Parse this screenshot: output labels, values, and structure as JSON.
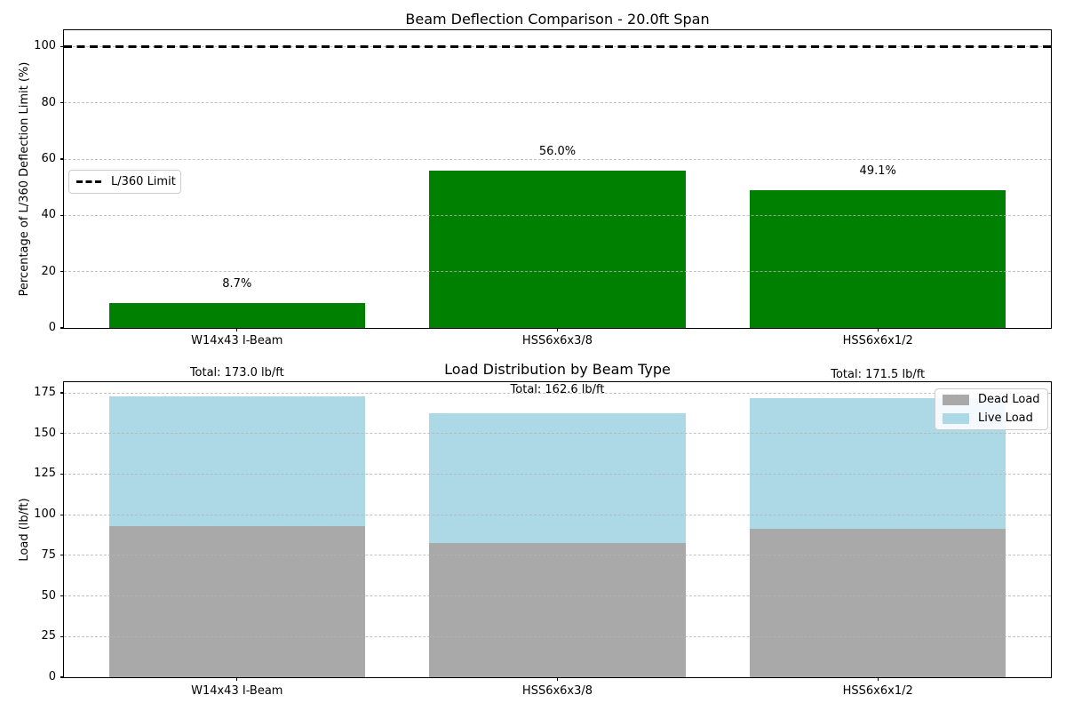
{
  "figure": {
    "background": "#ffffff"
  },
  "chart_data": [
    {
      "type": "bar",
      "title": "Beam Deflection Comparison - 20.0ft Span",
      "ylabel": "Percentage of L/360 Deflection Limit (%)",
      "xlabel": "",
      "categories": [
        "W14x43 I-Beam",
        "HSS6x6x3/8",
        "HSS6x6x1/2"
      ],
      "values": [
        8.7,
        56.0,
        49.1
      ],
      "bar_labels": [
        "8.7%",
        "56.0%",
        "49.1%"
      ],
      "bar_color": "#008000",
      "yticks": [
        0,
        20,
        40,
        60,
        80,
        100
      ],
      "ylim": [
        0,
        105.8
      ],
      "grid": "dashed-horizontal",
      "reference_line": {
        "value": 100,
        "label": "L/360 Limit",
        "color": "#000000",
        "style": "dashed"
      },
      "legend": {
        "position": "center-left",
        "entries": [
          {
            "label": "L/360 Limit",
            "marker": "dashed-line",
            "color": "#000000"
          }
        ]
      }
    },
    {
      "type": "stacked-bar",
      "title": "Load Distribution by Beam Type",
      "ylabel": "Load (lb/ft)",
      "xlabel": "",
      "categories": [
        "W14x43 I-Beam",
        "HSS6x6x3/8",
        "HSS6x6x1/2"
      ],
      "series": [
        {
          "name": "Dead Load",
          "color": "#a9a9a9",
          "values": [
            93.0,
            82.6,
            91.5
          ]
        },
        {
          "name": "Live Load",
          "color": "#add8e6",
          "values": [
            80.0,
            80.0,
            80.0
          ]
        }
      ],
      "totals": [
        173.0,
        162.6,
        171.5
      ],
      "total_labels": [
        "Total: 173.0 lb/ft",
        "Total: 162.6 lb/ft",
        "Total: 171.5 lb/ft"
      ],
      "yticks": [
        0,
        25,
        50,
        75,
        100,
        125,
        150,
        175
      ],
      "ylim": [
        0,
        181.6
      ],
      "grid": "dashed-horizontal",
      "legend": {
        "position": "upper-right",
        "entries": [
          {
            "label": "Dead Load",
            "marker": "patch",
            "color": "#a9a9a9"
          },
          {
            "label": "Live Load",
            "marker": "patch",
            "color": "#add8e6"
          }
        ]
      }
    }
  ],
  "charts": [
    {
      "title": "Beam Deflection Comparison - 20.0ft Span",
      "ylabel": "Percentage of L/360 Deflection Limit (%)"
    },
    {
      "title": "Load Distribution by Beam Type",
      "ylabel": "Load (lb/ft)"
    }
  ]
}
